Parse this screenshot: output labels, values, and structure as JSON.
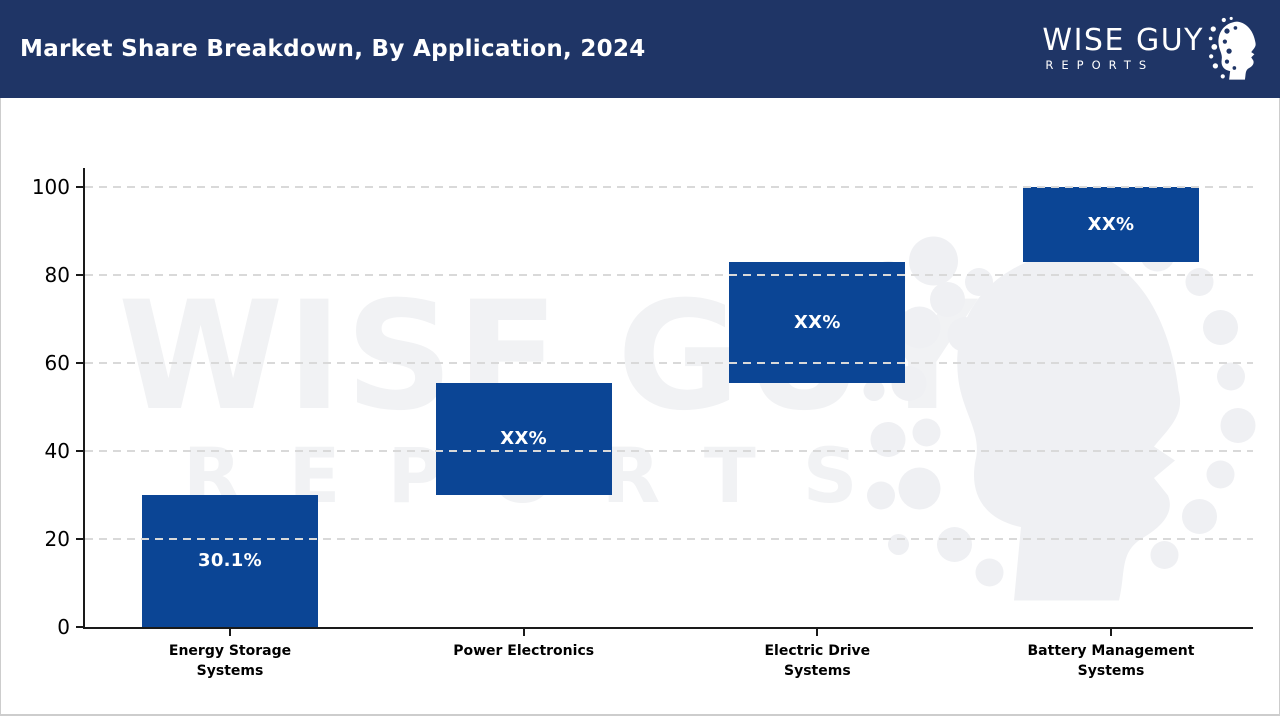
{
  "header": {
    "title": "Market Share Breakdown, By Application, 2024",
    "logo": {
      "wordmark": "WISE GUY",
      "sub": "REPORTS"
    }
  },
  "watermark": {
    "wordmark": "WISE GUY",
    "sub": "REPORTS"
  },
  "colors": {
    "header_bg": "#1f3566",
    "bar_blue": "#0b4595",
    "grid_gray": "#d9d9d9",
    "axis_black": "#1a1a1a",
    "watermark_gray": "#f1f2f4",
    "bar_label_white": "#ffffff"
  },
  "chart_data": {
    "type": "bar",
    "variant": "waterfall",
    "title": "Market Share Breakdown, By Application, 2024",
    "xlabel": "",
    "ylabel": "",
    "ylim": [
      0,
      100
    ],
    "yticks": [
      0,
      20,
      40,
      60,
      80,
      100
    ],
    "grid": "horizontal-dashed",
    "legend": "none",
    "categories": [
      "Energy Storage\nSystems",
      "Power Electronics",
      "Electric Drive\nSystems",
      "Battery Management\nSystems"
    ],
    "segments": [
      {
        "category": "Energy Storage Systems",
        "start": 0,
        "end": 30.1,
        "value": 30.1,
        "label": "30.1%"
      },
      {
        "category": "Power Electronics",
        "start": 30.1,
        "end": 55.4,
        "value": 25.3,
        "label": "XX%"
      },
      {
        "category": "Electric Drive Systems",
        "start": 55.4,
        "end": 83.0,
        "value": 27.6,
        "label": "XX%"
      },
      {
        "category": "Battery Management Systems",
        "start": 83.0,
        "end": 100.0,
        "value": 17.0,
        "label": "XX%"
      }
    ]
  }
}
